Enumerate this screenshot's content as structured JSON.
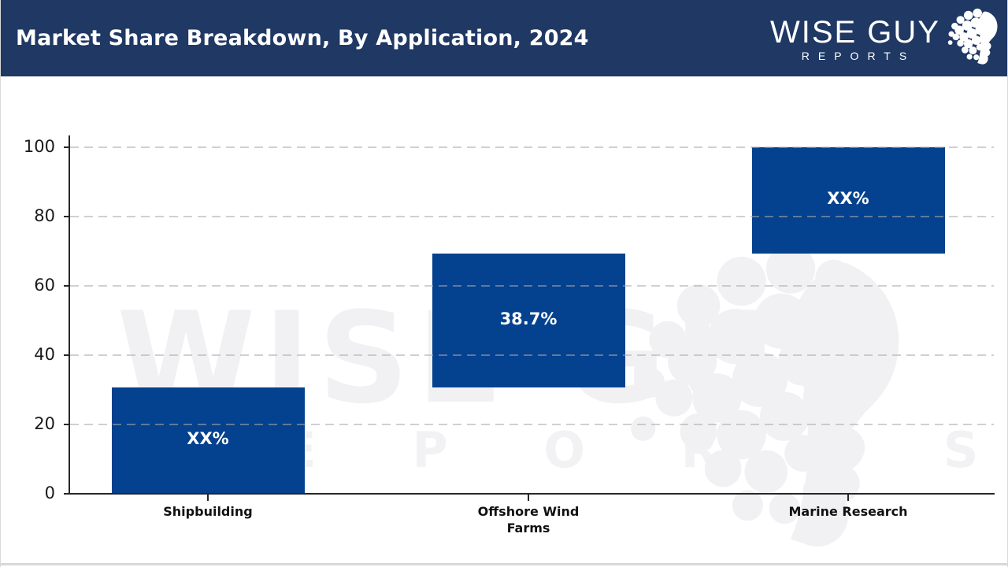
{
  "header": {
    "title": "Market Share Breakdown, By Application, 2024",
    "bg_color": "#1F3864",
    "logo": {
      "line1": "WISE GUY",
      "line2": "REPORTS"
    }
  },
  "watermark": {
    "line1": "WISE GUY",
    "line2": "R E P O R T S"
  },
  "chart_data": {
    "type": "bar",
    "subtype": "waterfall",
    "title": "Market Share Breakdown, By Application, 2024",
    "categories": [
      "Shipbuilding",
      "Offshore Wind Farms",
      "Marine Research"
    ],
    "series": [
      {
        "name": "Market Share (%)",
        "segments": [
          {
            "category": "Shipbuilding",
            "start": 0,
            "end": 30.7,
            "label": "XX%"
          },
          {
            "category": "Offshore Wind Farms",
            "start": 30.7,
            "end": 69.4,
            "label": "38.7%"
          },
          {
            "category": "Marine Research",
            "start": 69.4,
            "end": 100,
            "label": "XX%"
          }
        ]
      }
    ],
    "xlabel": "",
    "ylabel": "",
    "ylim": [
      0,
      100
    ],
    "yticks": [
      0,
      20,
      40,
      60,
      80,
      100
    ],
    "grid": "dashed-horizontal-over-bars",
    "legend": "none",
    "bar_color": "#04418F",
    "bar_label_color": "#FFFFFF",
    "axis_color": "#262626",
    "gridline_color": "#DCDCDC"
  }
}
